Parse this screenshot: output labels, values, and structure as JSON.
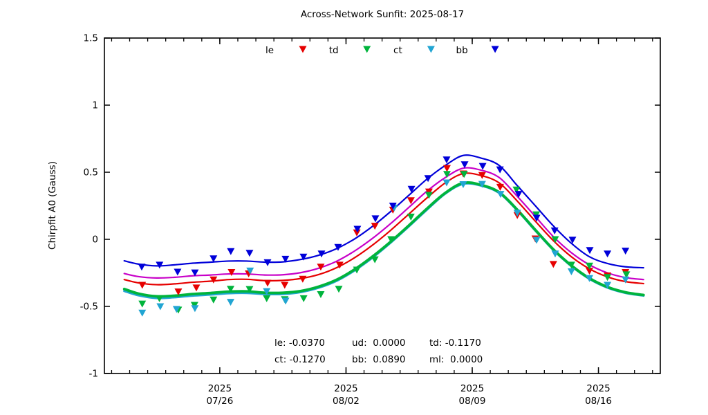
{
  "title": "Across-Network Sunfit: 2025-08-17",
  "y_axis": {
    "label": "Chirpfit A0 (Gauss)",
    "ticks": [
      -1,
      -0.5,
      0,
      0.5,
      1,
      1.5
    ],
    "tick_labels": [
      "-1",
      "-0.5",
      "0",
      "0.5",
      "1",
      "1.5"
    ]
  },
  "x_axis": {
    "major": [
      {
        "year": "2025",
        "date": "07/26",
        "day": 0
      },
      {
        "year": "2025",
        "date": "08/02",
        "day": 7
      },
      {
        "year": "2025",
        "date": "08/09",
        "day": 14
      },
      {
        "year": "2025",
        "date": "08/16",
        "day": 21
      }
    ],
    "minor_step_days": 1
  },
  "legend": {
    "items": [
      {
        "label": "le",
        "color": "#e60000"
      },
      {
        "label": "td",
        "color": "#00b43c"
      },
      {
        "label": "ct",
        "color": "#21a5d3"
      },
      {
        "label": "bb",
        "color": "#0000d9"
      }
    ]
  },
  "fit_stats": {
    "line1": [
      {
        "name": "le",
        "value": "-0.0370"
      },
      {
        "name": "ud",
        "value": "0.0000"
      },
      {
        "name": "td",
        "value": "-0.1170"
      }
    ],
    "line2": [
      {
        "name": "ct",
        "value": "-0.1270"
      },
      {
        "name": "bb",
        "value": "0.0890"
      },
      {
        "name": "ml",
        "value": "0.0000"
      }
    ]
  },
  "chart_data": {
    "type": "scatter",
    "title": "Across-Network Sunfit: 2025-08-17",
    "xlabel": "",
    "ylabel": "Chirpfit A0 (Gauss)",
    "x_unit": "days since 2025-07-26",
    "x_range": [
      -6.4,
      24.43
    ],
    "y_range": [
      -1,
      1.5
    ],
    "grid": false,
    "legend_position": "top-inside",
    "series": [
      {
        "name": "le",
        "color": "#e60000",
        "marker": "triangle-down",
        "points": [
          [
            -4.3,
            -0.34
          ],
          [
            -2.3,
            -0.39
          ],
          [
            -1.3,
            -0.36
          ],
          [
            -0.35,
            -0.3
          ],
          [
            0.65,
            -0.245
          ],
          [
            1.6,
            -0.255
          ],
          [
            2.65,
            -0.325
          ],
          [
            3.6,
            -0.34
          ],
          [
            4.6,
            -0.295
          ],
          [
            5.6,
            -0.205
          ],
          [
            6.65,
            -0.19
          ],
          [
            7.6,
            0.05
          ],
          [
            8.6,
            0.1
          ],
          [
            9.6,
            0.22
          ],
          [
            10.6,
            0.29
          ],
          [
            11.6,
            0.355
          ],
          [
            12.6,
            0.53
          ],
          [
            13.5,
            0.49
          ],
          [
            14.55,
            0.478
          ],
          [
            15.55,
            0.39
          ],
          [
            16.5,
            0.18
          ],
          [
            17.5,
            0.005
          ],
          [
            18.5,
            -0.185
          ],
          [
            20.5,
            -0.235
          ],
          [
            21.5,
            -0.27
          ],
          [
            22.5,
            -0.245
          ]
        ]
      },
      {
        "name": "td",
        "color": "#00b43c",
        "marker": "triangle-down",
        "points": [
          [
            -4.3,
            -0.48
          ],
          [
            -3.35,
            -0.44
          ],
          [
            -2.3,
            -0.525
          ],
          [
            -1.4,
            -0.49
          ],
          [
            -0.35,
            -0.45
          ],
          [
            0.6,
            -0.37
          ],
          [
            1.65,
            -0.372
          ],
          [
            2.6,
            -0.44
          ],
          [
            3.6,
            -0.447
          ],
          [
            4.65,
            -0.44
          ],
          [
            5.6,
            -0.41
          ],
          [
            6.6,
            -0.37
          ],
          [
            7.6,
            -0.227
          ],
          [
            8.6,
            -0.15
          ],
          [
            9.5,
            0.0
          ],
          [
            10.6,
            0.168
          ],
          [
            11.6,
            0.33
          ],
          [
            12.6,
            0.486
          ],
          [
            13.55,
            0.486
          ],
          [
            16.45,
            0.37
          ],
          [
            17.55,
            0.185
          ],
          [
            18.6,
            0.0
          ],
          [
            19.5,
            -0.19
          ],
          [
            20.5,
            -0.197
          ],
          [
            21.5,
            -0.282
          ],
          [
            22.55,
            -0.262
          ]
        ]
      },
      {
        "name": "ct",
        "color": "#21a5d3",
        "marker": "triangle-down",
        "points": [
          [
            -4.3,
            -0.548
          ],
          [
            -3.3,
            -0.5
          ],
          [
            -2.4,
            -0.52
          ],
          [
            -1.38,
            -0.514
          ],
          [
            0.6,
            -0.467
          ],
          [
            1.68,
            -0.234
          ],
          [
            2.6,
            -0.387
          ],
          [
            3.65,
            -0.458
          ],
          [
            9.67,
            0.235
          ],
          [
            12.58,
            0.423
          ],
          [
            13.5,
            0.41
          ],
          [
            14.55,
            0.412
          ],
          [
            15.57,
            0.337
          ],
          [
            16.5,
            0.197
          ],
          [
            17.57,
            -0.005
          ],
          [
            18.6,
            -0.107
          ],
          [
            19.5,
            -0.24
          ],
          [
            20.5,
            -0.29
          ],
          [
            21.5,
            -0.34
          ],
          [
            22.5,
            -0.3
          ]
        ]
      },
      {
        "name": "bb",
        "color": "#0000d9",
        "marker": "triangle-down",
        "points": [
          [
            -4.33,
            -0.205
          ],
          [
            -3.34,
            -0.19
          ],
          [
            -2.34,
            -0.242
          ],
          [
            -1.38,
            -0.248
          ],
          [
            -0.35,
            -0.143
          ],
          [
            0.61,
            -0.089
          ],
          [
            1.65,
            -0.102
          ],
          [
            2.65,
            -0.172
          ],
          [
            3.64,
            -0.146
          ],
          [
            4.64,
            -0.13
          ],
          [
            5.64,
            -0.107
          ],
          [
            6.56,
            -0.058
          ],
          [
            7.63,
            0.077
          ],
          [
            8.63,
            0.155
          ],
          [
            9.6,
            0.25
          ],
          [
            10.63,
            0.375
          ],
          [
            11.55,
            0.455
          ],
          [
            12.58,
            0.594
          ],
          [
            13.58,
            0.558
          ],
          [
            14.58,
            0.546
          ],
          [
            15.54,
            0.52
          ],
          [
            16.57,
            0.337
          ],
          [
            17.57,
            0.16
          ],
          [
            18.57,
            0.065
          ],
          [
            19.56,
            -0.004
          ],
          [
            20.52,
            -0.081
          ],
          [
            21.5,
            -0.107
          ],
          [
            22.5,
            -0.086
          ]
        ]
      }
    ],
    "fit_curves": [
      {
        "name": "ct_fit",
        "color": "#21a5d3",
        "points": [
          [
            -5.3,
            -0.385
          ],
          [
            -4.5,
            -0.418
          ],
          [
            -3.5,
            -0.438
          ],
          [
            -2.5,
            -0.432
          ],
          [
            -1.5,
            -0.42
          ],
          [
            -0.5,
            -0.412
          ],
          [
            0.5,
            -0.402
          ],
          [
            1.5,
            -0.4
          ],
          [
            2.5,
            -0.408
          ],
          [
            3.5,
            -0.408
          ],
          [
            4.5,
            -0.393
          ],
          [
            5.5,
            -0.36
          ],
          [
            6.5,
            -0.308
          ],
          [
            7.5,
            -0.23
          ],
          [
            8.5,
            -0.133
          ],
          [
            9.5,
            -0.022
          ],
          [
            10.5,
            0.098
          ],
          [
            11.5,
            0.222
          ],
          [
            12.5,
            0.34
          ],
          [
            13.5,
            0.413
          ],
          [
            14.5,
            0.4
          ],
          [
            15.5,
            0.345
          ],
          [
            16.5,
            0.215
          ],
          [
            17.5,
            0.065
          ],
          [
            18.5,
            -0.08
          ],
          [
            19.5,
            -0.2
          ],
          [
            20.5,
            -0.295
          ],
          [
            21.5,
            -0.36
          ],
          [
            22.5,
            -0.4
          ],
          [
            23.5,
            -0.42
          ]
        ]
      },
      {
        "name": "td_fit",
        "color": "#00b43c",
        "points": [
          [
            -5.3,
            -0.37
          ],
          [
            -4.5,
            -0.405
          ],
          [
            -3.5,
            -0.425
          ],
          [
            -2.5,
            -0.42
          ],
          [
            -1.5,
            -0.408
          ],
          [
            -0.5,
            -0.4
          ],
          [
            0.5,
            -0.39
          ],
          [
            1.5,
            -0.388
          ],
          [
            2.5,
            -0.398
          ],
          [
            3.5,
            -0.398
          ],
          [
            4.5,
            -0.385
          ],
          [
            5.5,
            -0.352
          ],
          [
            6.5,
            -0.3
          ],
          [
            7.5,
            -0.222
          ],
          [
            8.5,
            -0.125
          ],
          [
            9.5,
            -0.015
          ],
          [
            10.5,
            0.105
          ],
          [
            11.5,
            0.23
          ],
          [
            12.5,
            0.345
          ],
          [
            13.5,
            0.42
          ],
          [
            14.5,
            0.405
          ],
          [
            15.5,
            0.35
          ],
          [
            16.5,
            0.22
          ],
          [
            17.5,
            0.07
          ],
          [
            18.5,
            -0.075
          ],
          [
            19.5,
            -0.195
          ],
          [
            20.5,
            -0.29
          ],
          [
            21.5,
            -0.355
          ],
          [
            22.5,
            -0.395
          ],
          [
            23.5,
            -0.415
          ]
        ]
      },
      {
        "name": "le_fit",
        "color": "#e60000",
        "points": [
          [
            -5.3,
            -0.3
          ],
          [
            -4.5,
            -0.325
          ],
          [
            -3.5,
            -0.338
          ],
          [
            -2.5,
            -0.332
          ],
          [
            -1.5,
            -0.32
          ],
          [
            -0.5,
            -0.312
          ],
          [
            0.5,
            -0.3
          ],
          [
            1.5,
            -0.298
          ],
          [
            2.5,
            -0.308
          ],
          [
            3.5,
            -0.306
          ],
          [
            4.5,
            -0.292
          ],
          [
            5.5,
            -0.262
          ],
          [
            6.5,
            -0.21
          ],
          [
            7.5,
            -0.135
          ],
          [
            8.5,
            -0.04
          ],
          [
            9.5,
            0.07
          ],
          [
            10.5,
            0.19
          ],
          [
            11.5,
            0.31
          ],
          [
            12.5,
            0.42
          ],
          [
            13.5,
            0.49
          ],
          [
            14.5,
            0.475
          ],
          [
            15.5,
            0.42
          ],
          [
            16.5,
            0.285
          ],
          [
            17.5,
            0.135
          ],
          [
            18.5,
            -0.01
          ],
          [
            19.5,
            -0.13
          ],
          [
            20.5,
            -0.22
          ],
          [
            21.5,
            -0.28
          ],
          [
            22.5,
            -0.315
          ],
          [
            23.5,
            -0.33
          ]
        ]
      },
      {
        "name": "ml_fit",
        "color": "#c800c8",
        "points": [
          [
            -5.3,
            -0.255
          ],
          [
            -4.5,
            -0.278
          ],
          [
            -3.5,
            -0.288
          ],
          [
            -2.5,
            -0.283
          ],
          [
            -1.5,
            -0.272
          ],
          [
            -0.5,
            -0.266
          ],
          [
            0.5,
            -0.258
          ],
          [
            1.5,
            -0.258
          ],
          [
            2.5,
            -0.266
          ],
          [
            3.5,
            -0.264
          ],
          [
            4.5,
            -0.248
          ],
          [
            5.5,
            -0.215
          ],
          [
            6.5,
            -0.162
          ],
          [
            7.5,
            -0.085
          ],
          [
            8.5,
            0.01
          ],
          [
            9.5,
            0.12
          ],
          [
            10.5,
            0.24
          ],
          [
            11.5,
            0.36
          ],
          [
            12.5,
            0.46
          ],
          [
            13.5,
            0.53
          ],
          [
            14.5,
            0.515
          ],
          [
            15.5,
            0.46
          ],
          [
            16.5,
            0.32
          ],
          [
            17.5,
            0.17
          ],
          [
            18.5,
            0.02
          ],
          [
            19.5,
            -0.1
          ],
          [
            20.5,
            -0.19
          ],
          [
            21.5,
            -0.25
          ],
          [
            22.5,
            -0.285
          ],
          [
            23.5,
            -0.3
          ]
        ]
      },
      {
        "name": "bb_fit",
        "color": "#0000d9",
        "points": [
          [
            -5.3,
            -0.16
          ],
          [
            -4.5,
            -0.185
          ],
          [
            -3.5,
            -0.198
          ],
          [
            -2.5,
            -0.19
          ],
          [
            -1.5,
            -0.178
          ],
          [
            -0.5,
            -0.17
          ],
          [
            0.5,
            -0.162
          ],
          [
            1.5,
            -0.162
          ],
          [
            2.5,
            -0.17
          ],
          [
            3.5,
            -0.168
          ],
          [
            4.5,
            -0.15
          ],
          [
            5.5,
            -0.118
          ],
          [
            6.5,
            -0.068
          ],
          [
            7.5,
            0.005
          ],
          [
            8.5,
            0.1
          ],
          [
            9.5,
            0.21
          ],
          [
            10.5,
            0.33
          ],
          [
            11.5,
            0.45
          ],
          [
            12.5,
            0.55
          ],
          [
            13.5,
            0.625
          ],
          [
            14.5,
            0.605
          ],
          [
            15.5,
            0.55
          ],
          [
            16.5,
            0.4
          ],
          [
            17.5,
            0.25
          ],
          [
            18.5,
            0.1
          ],
          [
            19.5,
            -0.03
          ],
          [
            20.5,
            -0.13
          ],
          [
            21.5,
            -0.18
          ],
          [
            22.5,
            -0.205
          ],
          [
            23.5,
            -0.212
          ]
        ]
      }
    ]
  }
}
